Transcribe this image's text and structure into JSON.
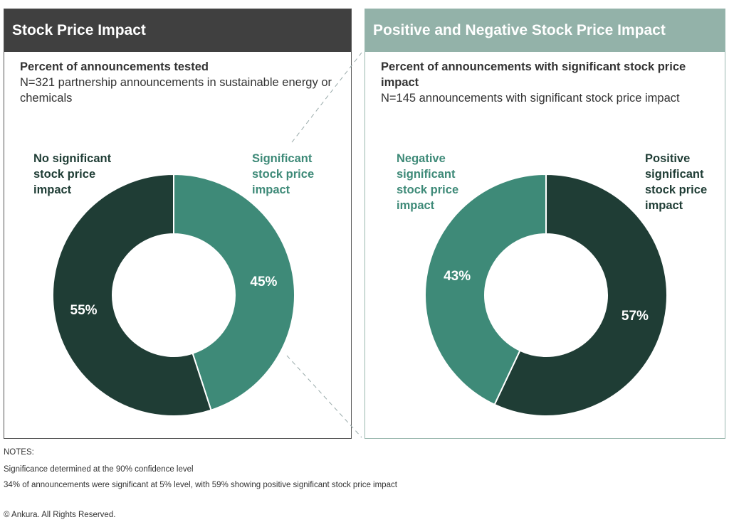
{
  "left_panel": {
    "title": "Stock Price Impact",
    "subtitle": "Percent of announcements tested",
    "description": "N=321 partnership announcements in sustainable energy or chemicals"
  },
  "right_panel": {
    "title": "Positive and Negative Stock Price Impact",
    "subtitle": "Percent of announcements with significant stock price impact",
    "description": "N=145 announcements with significant stock price impact"
  },
  "colors": {
    "dark_green": "#1f3d35",
    "teal": "#3e8a78",
    "left_header": "#404040",
    "right_header": "#93b2a9"
  },
  "chart_data": [
    {
      "type": "pie",
      "donut": true,
      "title": "Stock Price Impact",
      "slices": [
        {
          "label": "Significant stock price impact",
          "value": 45,
          "display": "45%",
          "color": "#3e8a78"
        },
        {
          "label": "No significant stock price impact",
          "value": 55,
          "display": "55%",
          "color": "#1f3d35"
        }
      ]
    },
    {
      "type": "pie",
      "donut": true,
      "title": "Positive and Negative Stock Price Impact",
      "slices": [
        {
          "label": "Positive significant stock price impact",
          "value": 57,
          "display": "57%",
          "color": "#1f3d35"
        },
        {
          "label": "Negative significant stock price impact",
          "value": 43,
          "display": "43%",
          "color": "#3e8a78"
        }
      ]
    }
  ],
  "notes": {
    "heading": "NOTES:",
    "lines": [
      "Significance determined at the 90% confidence level",
      "34% of announcements were significant at 5% level, with 59% showing positive significant stock price impact"
    ]
  },
  "copyright": "© Ankura. All Rights Reserved."
}
